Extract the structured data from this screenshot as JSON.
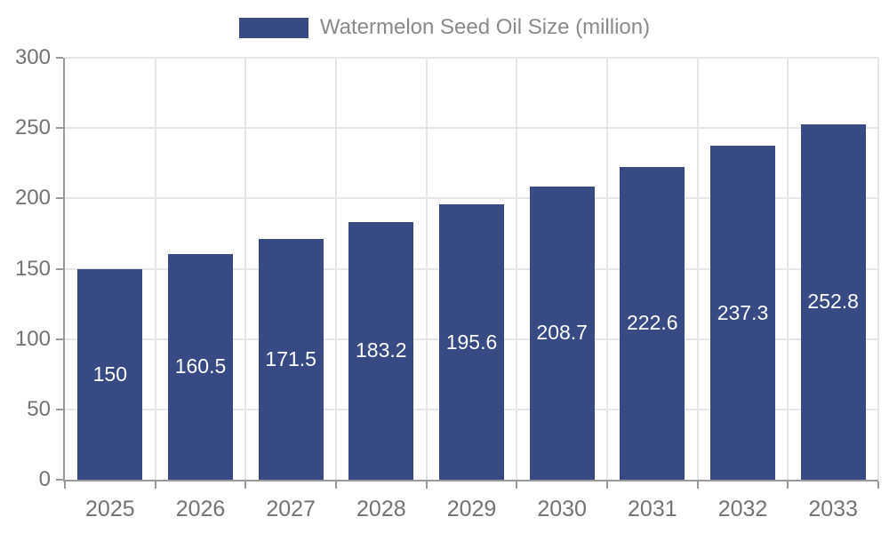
{
  "legend": {
    "label": "Watermelon Seed Oil Size (million)"
  },
  "chart_data": {
    "type": "bar",
    "title": "",
    "xlabel": "",
    "ylabel": "",
    "series_name": "Watermelon Seed Oil Size (million)",
    "categories": [
      "2025",
      "2026",
      "2027",
      "2028",
      "2029",
      "2030",
      "2031",
      "2032",
      "2033"
    ],
    "values": [
      150,
      160.5,
      171.5,
      183.2,
      195.6,
      208.7,
      222.6,
      237.3,
      252.8
    ],
    "value_labels_shown": [
      "150",
      "160.5",
      "171.5",
      "183.2",
      "195.6",
      "208.7",
      "222.6",
      "237.3",
      "252.8"
    ],
    "ylim": [
      0,
      300
    ],
    "y_ticks": [
      0,
      50,
      100,
      150,
      200,
      250,
      300
    ],
    "grid": true,
    "legend_position": "top-center",
    "value_label_position": "inside-center",
    "colors": {
      "bar": "#374a84",
      "axis": "#999999",
      "gridline": "#e6e6e6",
      "tick_label": "#737373",
      "legend_text": "#8a8a8a",
      "value_label": "#ffffff",
      "background": "#ffffff"
    }
  }
}
